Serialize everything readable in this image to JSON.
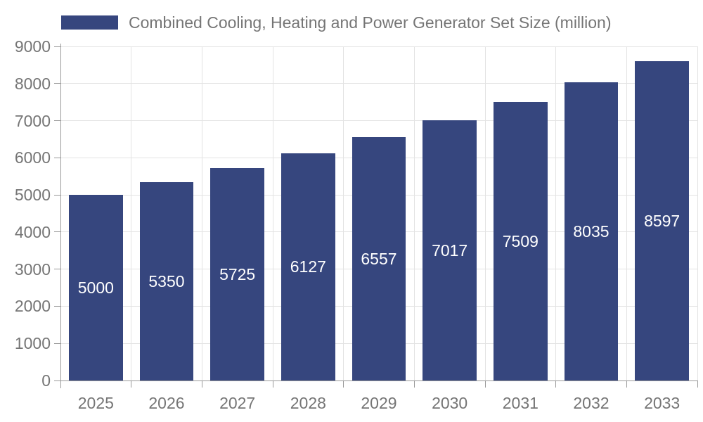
{
  "chart_data": {
    "type": "bar",
    "title": "Combined Cooling, Heating and Power Generator Set Size (million)",
    "categories": [
      "2025",
      "2026",
      "2027",
      "2028",
      "2029",
      "2030",
      "2031",
      "2032",
      "2033"
    ],
    "series": [
      {
        "name": "Combined Cooling, Heating and Power Generator Set Size (million)",
        "values": [
          5000,
          5350,
          5725,
          6127,
          6557,
          7017,
          7509,
          8035,
          8597
        ]
      }
    ],
    "xlabel": "",
    "ylabel": "",
    "ylim": [
      0,
      9000
    ],
    "ytick_interval": 1000,
    "ytick_labels": [
      "0",
      "1000",
      "2000",
      "3000",
      "4000",
      "5000",
      "6000",
      "7000",
      "8000",
      "9000"
    ],
    "grid": true,
    "grid_vertical": true,
    "legend_position": "top-left",
    "value_labels": "inside-center",
    "colors": {
      "bar": "#36467e",
      "value_label": "#ffffff",
      "axis_text": "#757575",
      "grid_line": "#e3e3e3",
      "axis_line": "#999999",
      "background": "#ffffff"
    }
  }
}
